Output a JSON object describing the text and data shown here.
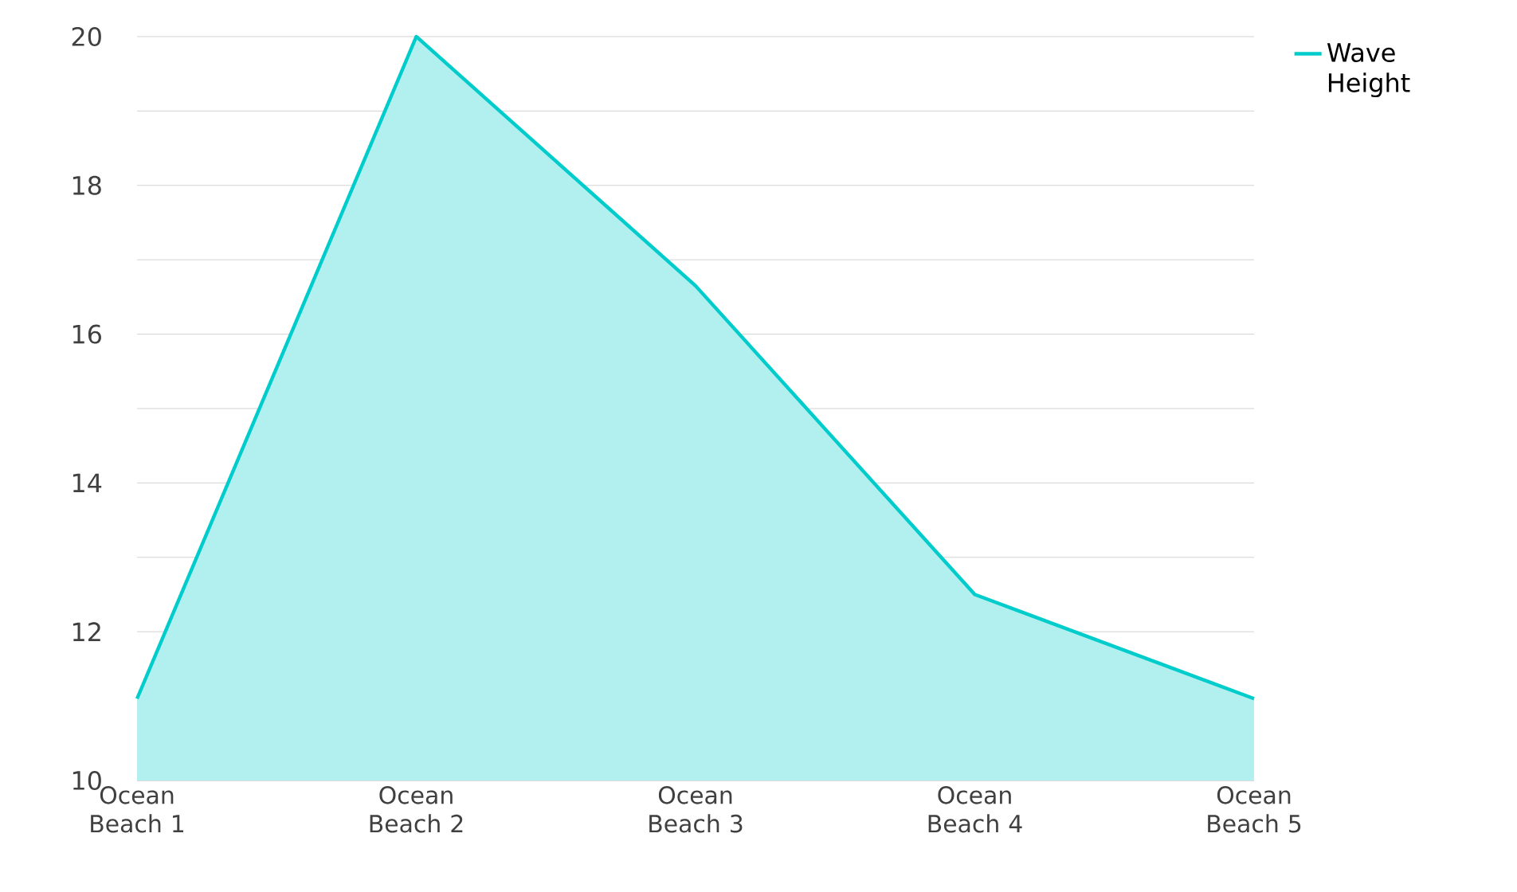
{
  "chart_data": {
    "type": "area",
    "categories": [
      "Ocean Beach 1",
      "Ocean Beach 2",
      "Ocean Beach 3",
      "Ocean Beach 4",
      "Ocean Beach 5"
    ],
    "series": [
      {
        "name": "Wave Height",
        "color": "#00cccc",
        "values": [
          11.1,
          20,
          16.65,
          12.5,
          11.1
        ]
      }
    ],
    "ylim": [
      10,
      20
    ],
    "yticks": [
      10,
      {
        "value": 11,
        "label": null
      },
      12,
      {
        "value": 13,
        "label": null
      },
      14,
      {
        "value": 15,
        "label": null
      },
      16,
      {
        "value": 17,
        "label": null
      },
      18,
      {
        "value": 19,
        "label": null
      },
      20
    ],
    "grid": "y",
    "legend": "top right",
    "marker": "none"
  }
}
